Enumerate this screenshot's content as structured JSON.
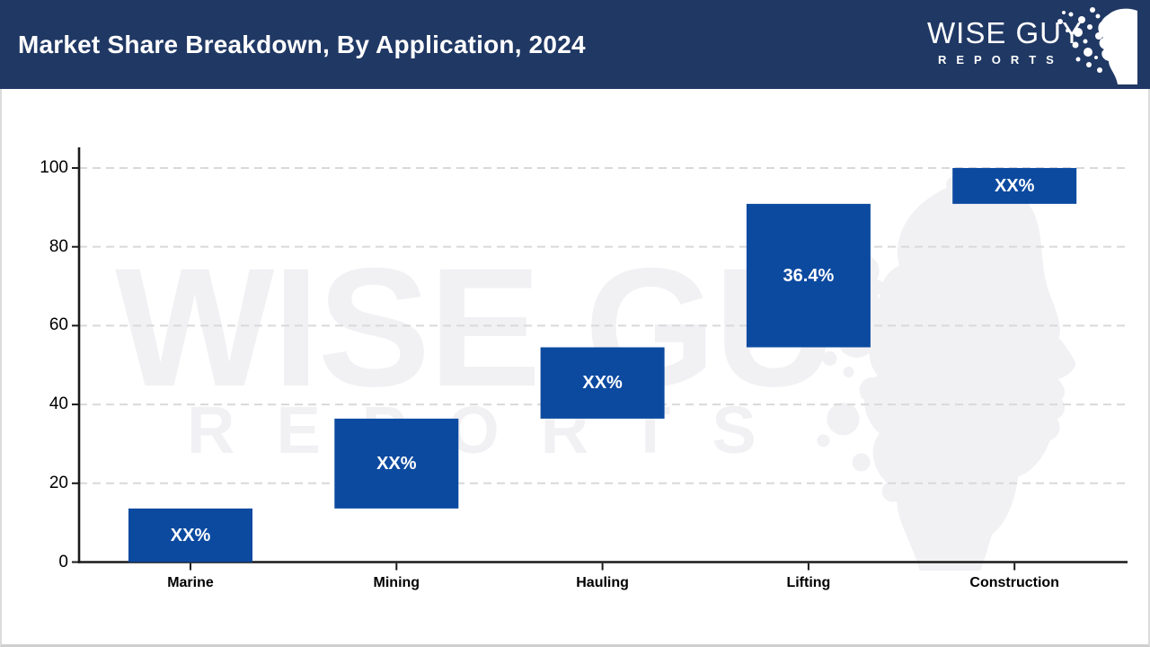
{
  "header": {
    "title": "Market Share Breakdown, By Application, 2024",
    "logo": {
      "brand_line1": "WISE GUY",
      "brand_line2": "REPORTS"
    }
  },
  "watermark": {
    "line1": "WISE GUY",
    "line2": "REPORTS"
  },
  "colors": {
    "header_bg": "#203864",
    "title_text": "#FFFFFF",
    "bar_fill": "#0C4AA0",
    "bar_label_text": "#FFFFFF",
    "gridline": "#D9D9D9",
    "axis": "#1A1A1A",
    "tick_label_text": "#000000",
    "watermark": "#F1F1F4"
  },
  "chart_data": {
    "type": "bar",
    "subtype": "waterfall",
    "title": "Market Share Breakdown, By Application, 2024",
    "categories": [
      "Marine",
      "Mining",
      "Hauling",
      "Lifting",
      "Construction"
    ],
    "segments": [
      {
        "category": "Marine",
        "start": 0,
        "end": 13.6,
        "value": 13.6,
        "label": "XX%"
      },
      {
        "category": "Mining",
        "start": 13.6,
        "end": 36.4,
        "value": 22.8,
        "label": "XX%"
      },
      {
        "category": "Hauling",
        "start": 36.4,
        "end": 54.5,
        "value": 18.1,
        "label": "XX%"
      },
      {
        "category": "Lifting",
        "start": 54.5,
        "end": 90.9,
        "value": 36.4,
        "label": "36.4%"
      },
      {
        "category": "Construction",
        "start": 90.9,
        "end": 100,
        "value": 9.1,
        "label": "XX%"
      }
    ],
    "yticks": [
      0,
      20,
      40,
      60,
      80,
      100
    ],
    "ylim": [
      0,
      100
    ],
    "grid": "dashed horizontal gridlines",
    "legend": "none"
  }
}
